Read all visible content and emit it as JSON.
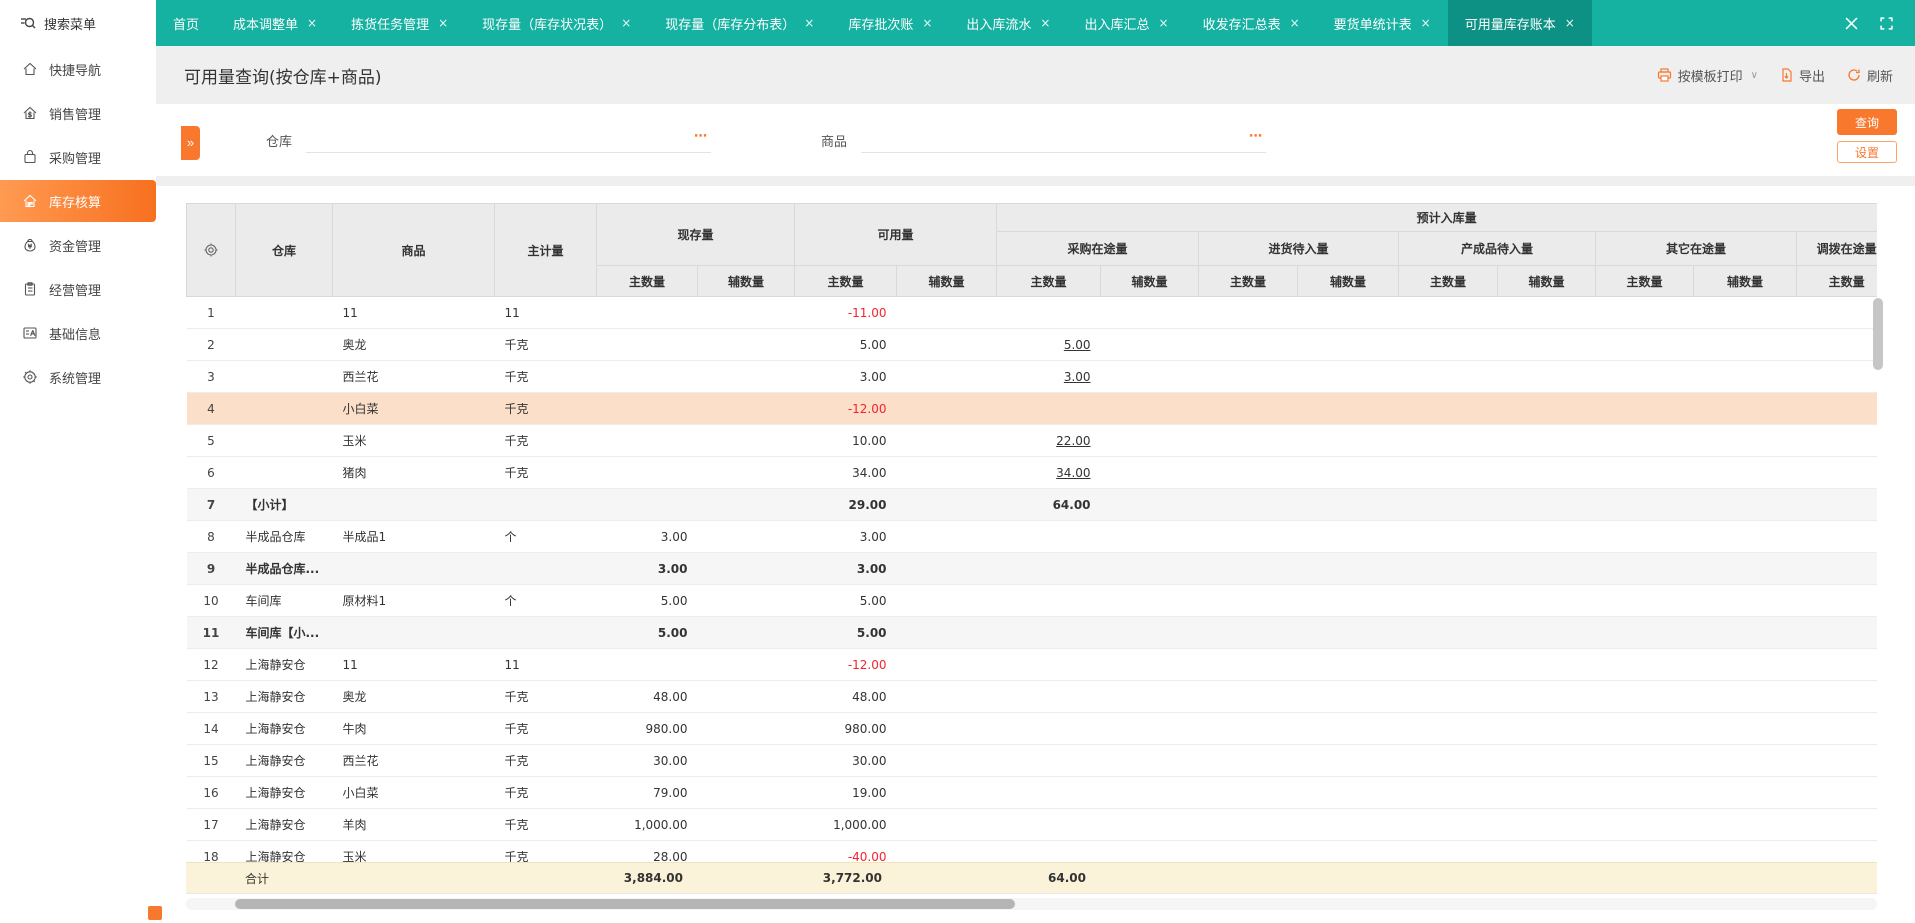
{
  "colors": {
    "accent": "#f8782e",
    "teal": "#15b2a2",
    "teal_active": "#0d9184",
    "negative": "#f5222d",
    "row_highlight": "#fcdfc8",
    "totals_bg": "#fbf2da"
  },
  "sidebar": {
    "search_label": "搜索菜单",
    "items": [
      {
        "label": "快捷导航",
        "icon": "home-icon",
        "active": false
      },
      {
        "label": "销售管理",
        "icon": "sales-icon",
        "active": false
      },
      {
        "label": "采购管理",
        "icon": "purchase-icon",
        "active": false
      },
      {
        "label": "库存核算",
        "icon": "inventory-icon",
        "active": true
      },
      {
        "label": "资金管理",
        "icon": "funds-icon",
        "active": false
      },
      {
        "label": "经营管理",
        "icon": "operations-icon",
        "active": false
      },
      {
        "label": "基础信息",
        "icon": "base-info-icon",
        "active": false
      },
      {
        "label": "系统管理",
        "icon": "system-icon",
        "active": false
      }
    ]
  },
  "tabbar": {
    "tabs": [
      {
        "label": "首页",
        "closable": false,
        "active": false
      },
      {
        "label": "成本调整单",
        "closable": true,
        "active": false
      },
      {
        "label": "拣货任务管理",
        "closable": true,
        "active": false
      },
      {
        "label": "现存量（库存状况表）",
        "closable": true,
        "active": false
      },
      {
        "label": "现存量（库存分布表）",
        "closable": true,
        "active": false
      },
      {
        "label": "库存批次账",
        "closable": true,
        "active": false
      },
      {
        "label": "出入库流水",
        "closable": true,
        "active": false
      },
      {
        "label": "出入库汇总",
        "closable": true,
        "active": false
      },
      {
        "label": "收发存汇总表",
        "closable": true,
        "active": false
      },
      {
        "label": "要货单统计表",
        "closable": true,
        "active": false
      },
      {
        "label": "可用量库存账本",
        "closable": true,
        "active": true
      }
    ],
    "close_label": "×"
  },
  "page": {
    "title": "可用量查询(按仓库+商品)"
  },
  "toolbar": {
    "print": "按模板打印",
    "export": "导出",
    "refresh": "刷新"
  },
  "query": {
    "fields": [
      {
        "label": "仓库",
        "value": "",
        "ellipsis": "⋯"
      },
      {
        "label": "商品",
        "value": "",
        "ellipsis": "⋯"
      }
    ],
    "search_button": "查询",
    "settings_button": "设置"
  },
  "table": {
    "header": {
      "warehouse": "仓库",
      "product": "商品",
      "unit": "主计量",
      "group_onhand": "现存量",
      "group_available": "可用量",
      "group_expected": "预计入库量",
      "sub_purchase": "采购在途量",
      "sub_incoming": "进货待入量",
      "sub_finished": "产成品待入量",
      "sub_other": "其它在途量",
      "sub_transfer": "调拨在途量",
      "qty_main": "主数量",
      "qty_aux": "辅数量"
    },
    "rows": [
      {
        "n": "1",
        "wh": "",
        "prod": "11",
        "unit": "11",
        "cur": "",
        "avail": "-11.00",
        "pur": "",
        "availNeg": true,
        "purLink": false,
        "subtotal": false,
        "highlight": false
      },
      {
        "n": "2",
        "wh": "",
        "prod": "奥龙",
        "unit": "千克",
        "cur": "",
        "avail": "5.00",
        "pur": "5.00",
        "availNeg": false,
        "purLink": true,
        "subtotal": false,
        "highlight": false
      },
      {
        "n": "3",
        "wh": "",
        "prod": "西兰花",
        "unit": "千克",
        "cur": "",
        "avail": "3.00",
        "pur": "3.00",
        "availNeg": false,
        "purLink": true,
        "subtotal": false,
        "highlight": false
      },
      {
        "n": "4",
        "wh": "",
        "prod": "小白菜",
        "unit": "千克",
        "cur": "",
        "avail": "-12.00",
        "pur": "",
        "availNeg": true,
        "purLink": false,
        "subtotal": false,
        "highlight": true
      },
      {
        "n": "5",
        "wh": "",
        "prod": "玉米",
        "unit": "千克",
        "cur": "",
        "avail": "10.00",
        "pur": "22.00",
        "availNeg": false,
        "purLink": true,
        "subtotal": false,
        "highlight": false
      },
      {
        "n": "6",
        "wh": "",
        "prod": "猪肉",
        "unit": "千克",
        "cur": "",
        "avail": "34.00",
        "pur": "34.00",
        "availNeg": false,
        "purLink": true,
        "subtotal": false,
        "highlight": false
      },
      {
        "n": "7",
        "wh": "【小计】",
        "prod": "",
        "unit": "",
        "cur": "",
        "avail": "29.00",
        "pur": "64.00",
        "availNeg": false,
        "purLink": false,
        "subtotal": true,
        "highlight": false
      },
      {
        "n": "8",
        "wh": "半成品仓库",
        "prod": "半成品1",
        "unit": "个",
        "cur": "3.00",
        "avail": "3.00",
        "pur": "",
        "availNeg": false,
        "purLink": false,
        "subtotal": false,
        "highlight": false
      },
      {
        "n": "9",
        "wh": "半成品仓库...",
        "prod": "",
        "unit": "",
        "cur": "3.00",
        "avail": "3.00",
        "pur": "",
        "availNeg": false,
        "purLink": false,
        "subtotal": true,
        "highlight": false
      },
      {
        "n": "10",
        "wh": "车间库",
        "prod": "原材料1",
        "unit": "个",
        "cur": "5.00",
        "avail": "5.00",
        "pur": "",
        "availNeg": false,
        "purLink": false,
        "subtotal": false,
        "highlight": false
      },
      {
        "n": "11",
        "wh": "车间库【小...",
        "prod": "",
        "unit": "",
        "cur": "5.00",
        "avail": "5.00",
        "pur": "",
        "availNeg": false,
        "purLink": false,
        "subtotal": true,
        "highlight": false
      },
      {
        "n": "12",
        "wh": "上海静安仓",
        "prod": "11",
        "unit": "11",
        "cur": "",
        "avail": "-12.00",
        "pur": "",
        "availNeg": true,
        "purLink": false,
        "subtotal": false,
        "highlight": false
      },
      {
        "n": "13",
        "wh": "上海静安仓",
        "prod": "奥龙",
        "unit": "千克",
        "cur": "48.00",
        "avail": "48.00",
        "pur": "",
        "availNeg": false,
        "purLink": false,
        "subtotal": false,
        "highlight": false
      },
      {
        "n": "14",
        "wh": "上海静安仓",
        "prod": "牛肉",
        "unit": "千克",
        "cur": "980.00",
        "avail": "980.00",
        "pur": "",
        "availNeg": false,
        "purLink": false,
        "subtotal": false,
        "highlight": false
      },
      {
        "n": "15",
        "wh": "上海静安仓",
        "prod": "西兰花",
        "unit": "千克",
        "cur": "30.00",
        "avail": "30.00",
        "pur": "",
        "availNeg": false,
        "purLink": false,
        "subtotal": false,
        "highlight": false
      },
      {
        "n": "16",
        "wh": "上海静安仓",
        "prod": "小白菜",
        "unit": "千克",
        "cur": "79.00",
        "avail": "19.00",
        "pur": "",
        "availNeg": false,
        "purLink": false,
        "subtotal": false,
        "highlight": false
      },
      {
        "n": "17",
        "wh": "上海静安仓",
        "prod": "羊肉",
        "unit": "千克",
        "cur": "1,000.00",
        "avail": "1,000.00",
        "pur": "",
        "availNeg": false,
        "purLink": false,
        "subtotal": false,
        "highlight": false
      },
      {
        "n": "18",
        "wh": "上海静安仓",
        "prod": "玉米",
        "unit": "千克",
        "cur": "28.00",
        "avail": "-40.00",
        "pur": "",
        "availNeg": true,
        "purLink": false,
        "subtotal": false,
        "highlight": false
      }
    ],
    "total": {
      "label": "合计",
      "onhand_main": "3,884.00",
      "available_main": "3,772.00",
      "purchase_main": "64.00"
    }
  }
}
